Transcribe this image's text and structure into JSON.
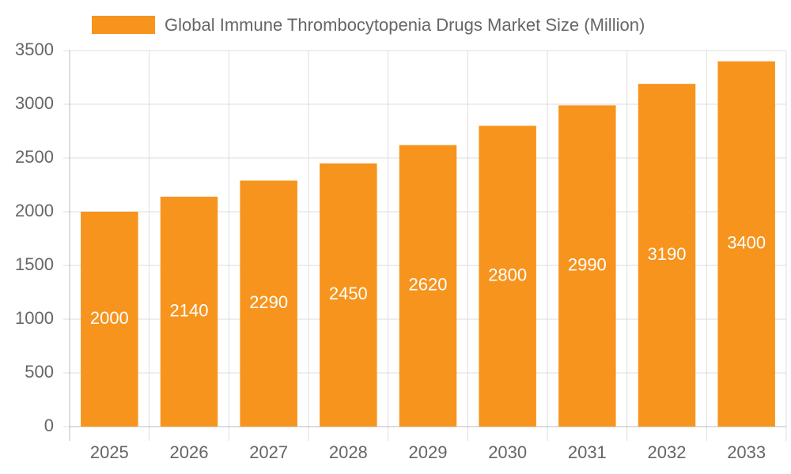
{
  "chart_data": {
    "type": "bar",
    "categories": [
      "2025",
      "2026",
      "2027",
      "2028",
      "2029",
      "2030",
      "2031",
      "2032",
      "2033"
    ],
    "series": [
      {
        "name": "Global Immune Thrombocytopenia Drugs Market Size (Million)",
        "color": "#f7941d",
        "values": [
          2000,
          2140,
          2290,
          2450,
          2620,
          2800,
          2990,
          3190,
          3400
        ]
      }
    ],
    "ylim": [
      0,
      3500
    ],
    "yticks": [
      0,
      500,
      1000,
      1500,
      2000,
      2500,
      3000,
      3500
    ],
    "grid": true,
    "data_labels": true
  }
}
